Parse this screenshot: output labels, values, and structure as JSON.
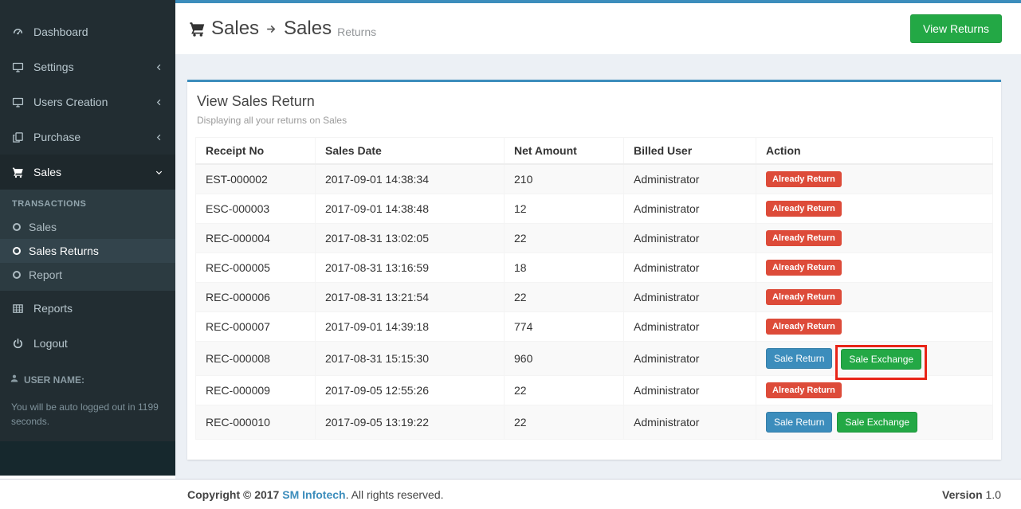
{
  "colors": {
    "accent_blue": "#3c8dbc",
    "success_green": "#23a845",
    "danger_red": "#dd4b39",
    "highlight_red": "#e82417"
  },
  "sidebar": {
    "items": [
      {
        "label": "Dashboard"
      },
      {
        "label": "Settings"
      },
      {
        "label": "Users Creation"
      },
      {
        "label": "Purchase"
      },
      {
        "label": "Sales"
      }
    ],
    "section_label": "TRANSACTIONS",
    "sub_items": [
      {
        "label": "Sales"
      },
      {
        "label": "Sales Returns"
      },
      {
        "label": "Report"
      }
    ],
    "reports_label": "Reports",
    "logout_label": "Logout",
    "user_label": "USER NAME:",
    "auto_logout_note": "You will be auto logged out in 1199 seconds."
  },
  "header": {
    "title_main": "Sales",
    "title_secondary": "Sales",
    "title_sub": "Returns",
    "view_returns_button": "View Returns"
  },
  "panel": {
    "title": "View Sales Return",
    "subtitle": "Displaying all your returns on Sales"
  },
  "table": {
    "columns": [
      "Receipt No",
      "Sales Date",
      "Net Amount",
      "Billed User",
      "Action"
    ],
    "rows": [
      {
        "receipt_no": "EST-000002",
        "sales_date": "2017-09-01 14:38:34",
        "net_amount": "210",
        "billed_user": "Administrator",
        "actions": [
          {
            "label": "Already Return",
            "style": "danger",
            "highlighted": false
          }
        ]
      },
      {
        "receipt_no": "ESC-000003",
        "sales_date": "2017-09-01 14:38:48",
        "net_amount": "12",
        "billed_user": "Administrator",
        "actions": [
          {
            "label": "Already Return",
            "style": "danger",
            "highlighted": false
          }
        ]
      },
      {
        "receipt_no": "REC-000004",
        "sales_date": "2017-08-31 13:02:05",
        "net_amount": "22",
        "billed_user": "Administrator",
        "actions": [
          {
            "label": "Already Return",
            "style": "danger",
            "highlighted": false
          }
        ]
      },
      {
        "receipt_no": "REC-000005",
        "sales_date": "2017-08-31 13:16:59",
        "net_amount": "18",
        "billed_user": "Administrator",
        "actions": [
          {
            "label": "Already Return",
            "style": "danger",
            "highlighted": false
          }
        ]
      },
      {
        "receipt_no": "REC-000006",
        "sales_date": "2017-08-31 13:21:54",
        "net_amount": "22",
        "billed_user": "Administrator",
        "actions": [
          {
            "label": "Already Return",
            "style": "danger",
            "highlighted": false
          }
        ]
      },
      {
        "receipt_no": "REC-000007",
        "sales_date": "2017-09-01 14:39:18",
        "net_amount": "774",
        "billed_user": "Administrator",
        "actions": [
          {
            "label": "Already Return",
            "style": "danger",
            "highlighted": false
          }
        ]
      },
      {
        "receipt_no": "REC-000008",
        "sales_date": "2017-08-31 15:15:30",
        "net_amount": "960",
        "billed_user": "Administrator",
        "actions": [
          {
            "label": "Sale Return",
            "style": "primary",
            "highlighted": false
          },
          {
            "label": "Sale Exchange",
            "style": "success",
            "highlighted": true
          }
        ]
      },
      {
        "receipt_no": "REC-000009",
        "sales_date": "2017-09-05 12:55:26",
        "net_amount": "22",
        "billed_user": "Administrator",
        "actions": [
          {
            "label": "Already Return",
            "style": "danger",
            "highlighted": false
          }
        ]
      },
      {
        "receipt_no": "REC-000010",
        "sales_date": "2017-09-05 13:19:22",
        "net_amount": "22",
        "billed_user": "Administrator",
        "actions": [
          {
            "label": "Sale Return",
            "style": "primary",
            "highlighted": false
          },
          {
            "label": "Sale Exchange",
            "style": "success",
            "highlighted": false
          }
        ]
      }
    ]
  },
  "footer": {
    "copyright_bold": "Copyright © 2017",
    "company": "SM Infotech",
    "rights": ". All rights reserved.",
    "version_label": "Version",
    "version_value": "1.0"
  }
}
